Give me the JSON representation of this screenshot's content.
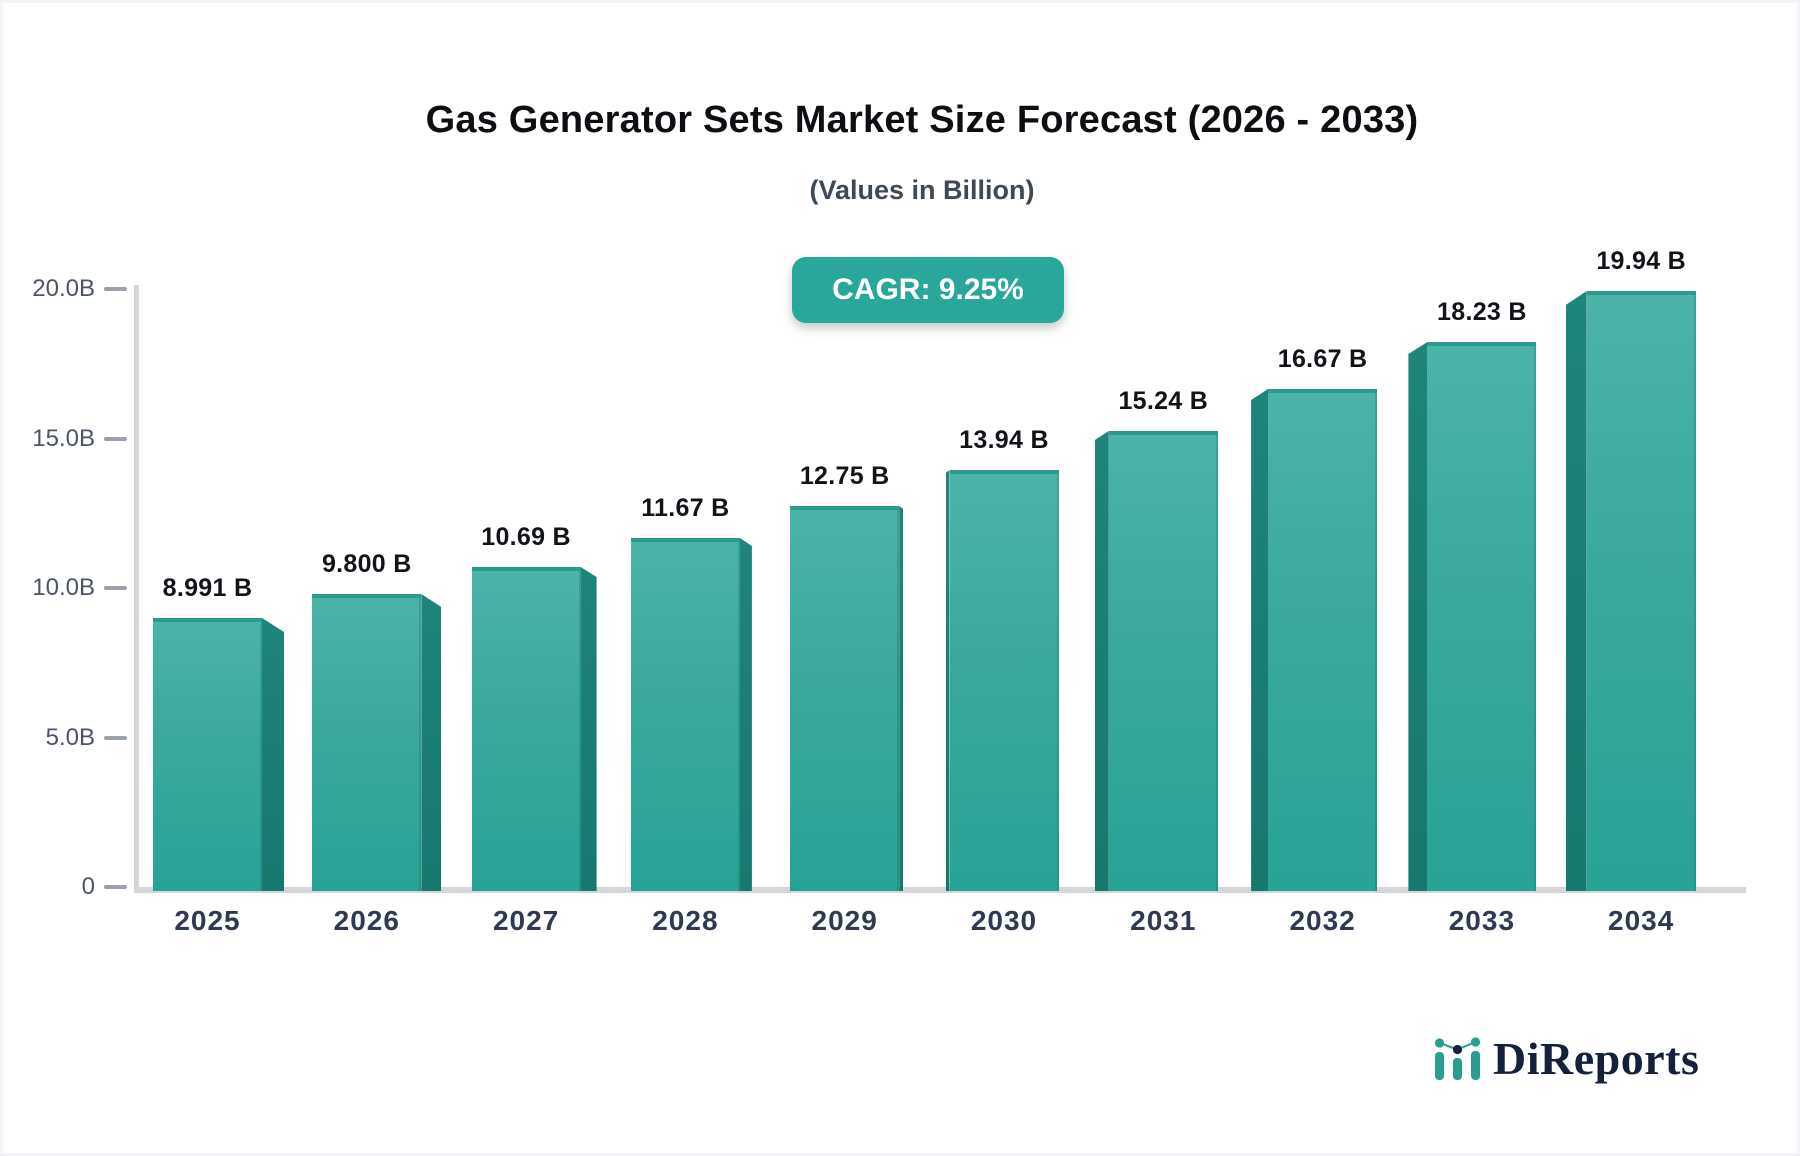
{
  "title": "Gas Generator Sets Market Size Forecast (2026 - 2033)",
  "subtitle": "(Values in Billion)",
  "badge": {
    "label": "CAGR: 9.25%",
    "bg": "#29a79b"
  },
  "brand": {
    "name": "DiReports",
    "icon": "bar-chart-logo-icon"
  },
  "chart_data": {
    "type": "bar",
    "title": "Gas Generator Sets Market Size Forecast (2026 - 2033)",
    "subtitle": "(Values in Billion)",
    "annotation": "CAGR: 9.25%",
    "categories": [
      "2025",
      "2026",
      "2027",
      "2028",
      "2029",
      "2030",
      "2031",
      "2032",
      "2033",
      "2034"
    ],
    "values": [
      8.991,
      9.8,
      10.69,
      11.67,
      12.75,
      13.94,
      15.24,
      16.67,
      18.23,
      19.94
    ],
    "value_labels": [
      "8.991 B",
      "9.800 B",
      "10.69 B",
      "11.67 B",
      "12.75 B",
      "13.94 B",
      "15.24 B",
      "16.67 B",
      "18.23 B",
      "19.94 B"
    ],
    "xlabel": "",
    "ylabel": "",
    "ylim": [
      0,
      20
    ],
    "ytick_values": [
      0,
      5,
      10,
      15,
      20
    ],
    "ytick_labels": [
      "0",
      "5.0B",
      "10.0B",
      "15.0B",
      "20.0B"
    ],
    "grid": false,
    "legend": "none",
    "colors": {
      "bar_front_top": "#4cb3a9",
      "bar_front_bottom": "#27a396",
      "bar_top_edge": "#2e9a8e",
      "bar_side": "#1b7e74",
      "axis_line": "#d4d6da",
      "tick_dash": "#9aa1ab",
      "value_label": "#101418",
      "category_label": "#2e3a52",
      "ytick_label": "#4b5566",
      "badge_bg": "#29a79b",
      "brand_navy": "#14213a",
      "brand_teal": "#2a9d93"
    }
  }
}
